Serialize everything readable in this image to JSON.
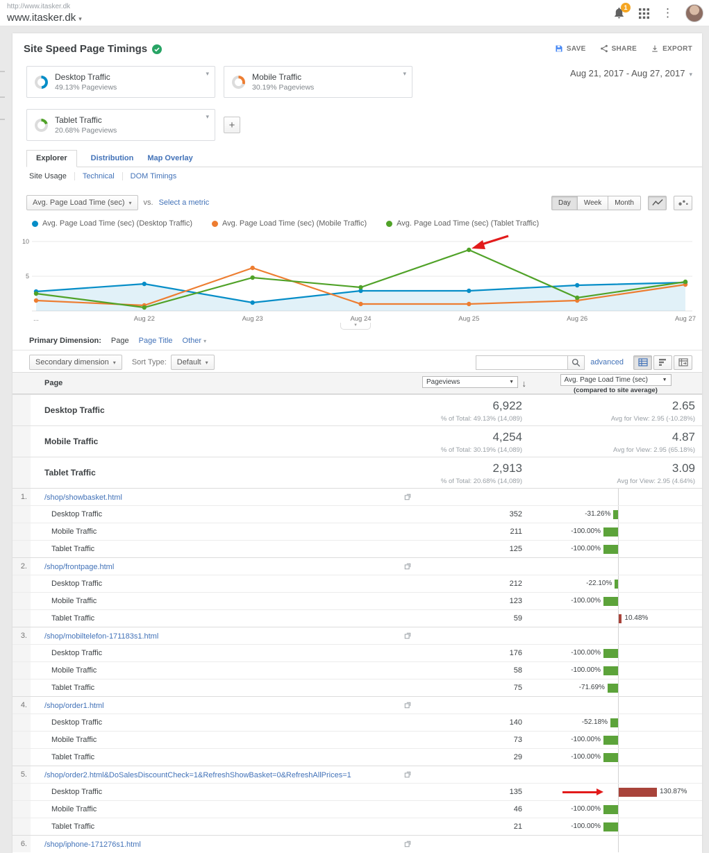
{
  "topbar": {
    "url": "http://www.itasker.dk",
    "account": "www.itasker.dk",
    "notification_count": "1"
  },
  "header": {
    "title": "Site Speed Page Timings",
    "save": "SAVE",
    "share": "SHARE",
    "export": "EXPORT"
  },
  "date_range": "Aug 21, 2017 - Aug 27, 2017",
  "segments": [
    {
      "name": "Desktop Traffic",
      "detail": "49.13% Pageviews",
      "pct": 49.13,
      "color": "#058dc7"
    },
    {
      "name": "Mobile Traffic",
      "detail": "30.19% Pageviews",
      "pct": 30.19,
      "color": "#ed7d31"
    },
    {
      "name": "Tablet Traffic",
      "detail": "20.68% Pageviews",
      "pct": 20.68,
      "color": "#50a228"
    }
  ],
  "add_segment": "+",
  "tabs": [
    {
      "label": "Explorer",
      "active": true
    },
    {
      "label": "Distribution",
      "active": false
    },
    {
      "label": "Map Overlay",
      "active": false
    }
  ],
  "subtabs": [
    {
      "label": "Site Usage",
      "active": true
    },
    {
      "label": "Technical",
      "active": false
    },
    {
      "label": "DOM Timings",
      "active": false
    }
  ],
  "controls": {
    "metric_button": "Avg. Page Load Time (sec)",
    "vs": "vs.",
    "select_metric": "Select a metric",
    "granularity": [
      "Day",
      "Week",
      "Month"
    ],
    "granularity_active": "Day"
  },
  "chart_data": {
    "type": "line",
    "x": [
      "...",
      "Aug 22",
      "Aug 23",
      "Aug 24",
      "Aug 25",
      "Aug 26",
      "Aug 27"
    ],
    "ylim": [
      0,
      10
    ],
    "yticks": [
      5,
      10
    ],
    "ylabel": "Avg. Page Load Time (sec)",
    "series": [
      {
        "name": "Avg. Page Load Time (sec) (Desktop Traffic)",
        "color": "#058dc7",
        "area": true,
        "values": [
          2.8,
          3.9,
          1.2,
          2.9,
          2.9,
          3.7,
          4.1
        ]
      },
      {
        "name": "Avg. Page Load Time (sec) (Mobile Traffic)",
        "color": "#ed7d31",
        "area": false,
        "values": [
          1.5,
          0.8,
          6.2,
          1.0,
          1.0,
          1.5,
          3.8
        ]
      },
      {
        "name": "Avg. Page Load Time (sec) (Tablet Traffic)",
        "color": "#50a228",
        "area": false,
        "values": [
          2.5,
          0.5,
          4.8,
          3.4,
          8.8,
          1.9,
          4.2
        ]
      }
    ],
    "annotation": "red arrow pointing at Tablet Traffic peak on Aug 25"
  },
  "primary_dimension": {
    "label": "Primary Dimension:",
    "options": [
      {
        "label": "Page",
        "active": true
      },
      {
        "label": "Page Title",
        "active": false
      },
      {
        "label": "Other",
        "active": false
      }
    ]
  },
  "toolbar": {
    "secondary_dimension": "Secondary dimension",
    "sort_type_label": "Sort Type:",
    "sort_type_value": "Default",
    "search_value": "",
    "advanced": "advanced"
  },
  "table": {
    "columns": {
      "page": "Page",
      "pageviews": "Pageviews",
      "metric": "Avg. Page Load Time (sec)",
      "metric_note": "(compared to site average)"
    },
    "bar_negative_color": "#5ca33a",
    "bar_positive_color": "#a8433a",
    "summary": [
      {
        "name": "Desktop Traffic",
        "pageviews": "6,922",
        "pageviews_note": "% of Total: 49.13% (14,089)",
        "metric": "2.65",
        "metric_note": "Avg for View: 2.95 (-10.28%)"
      },
      {
        "name": "Mobile Traffic",
        "pageviews": "4,254",
        "pageviews_note": "% of Total: 30.19% (14,089)",
        "metric": "4.87",
        "metric_note": "Avg for View: 2.95 (65.18%)"
      },
      {
        "name": "Tablet Traffic",
        "pageviews": "2,913",
        "pageviews_note": "% of Total: 20.68% (14,089)",
        "metric": "3.09",
        "metric_note": "Avg for View: 2.95 (4.64%)"
      }
    ],
    "rows": [
      {
        "index": "1.",
        "page": "/shop/showbasket.html",
        "segments": [
          {
            "name": "Desktop Traffic",
            "pageviews": "352",
            "pct": -31.26,
            "pct_label": "-31.26%"
          },
          {
            "name": "Mobile Traffic",
            "pageviews": "211",
            "pct": -100.0,
            "pct_label": "-100.00%"
          },
          {
            "name": "Tablet Traffic",
            "pageviews": "125",
            "pct": -100.0,
            "pct_label": "-100.00%"
          }
        ]
      },
      {
        "index": "2.",
        "page": "/shop/frontpage.html",
        "segments": [
          {
            "name": "Desktop Traffic",
            "pageviews": "212",
            "pct": -22.1,
            "pct_label": "-22.10%"
          },
          {
            "name": "Mobile Traffic",
            "pageviews": "123",
            "pct": -100.0,
            "pct_label": "-100.00%"
          },
          {
            "name": "Tablet Traffic",
            "pageviews": "59",
            "pct": 10.48,
            "pct_label": "10.48%"
          }
        ]
      },
      {
        "index": "3.",
        "page": "/shop/mobiltelefon-171183s1.html",
        "segments": [
          {
            "name": "Desktop Traffic",
            "pageviews": "176",
            "pct": -100.0,
            "pct_label": "-100.00%"
          },
          {
            "name": "Mobile Traffic",
            "pageviews": "58",
            "pct": -100.0,
            "pct_label": "-100.00%"
          },
          {
            "name": "Tablet Traffic",
            "pageviews": "75",
            "pct": -71.69,
            "pct_label": "-71.69%"
          }
        ]
      },
      {
        "index": "4.",
        "page": "/shop/order1.html",
        "segments": [
          {
            "name": "Desktop Traffic",
            "pageviews": "140",
            "pct": -52.18,
            "pct_label": "-52.18%"
          },
          {
            "name": "Mobile Traffic",
            "pageviews": "73",
            "pct": -100.0,
            "pct_label": "-100.00%"
          },
          {
            "name": "Tablet Traffic",
            "pageviews": "29",
            "pct": -100.0,
            "pct_label": "-100.00%"
          }
        ]
      },
      {
        "index": "5.",
        "page": "/shop/order2.html&DoSalesDiscountCheck=1&RefreshShowBasket=0&RefreshAllPrices=1",
        "segments": [
          {
            "name": "Desktop Traffic",
            "pageviews": "135",
            "pct": 130.87,
            "pct_label": "130.87%",
            "annotated": true
          },
          {
            "name": "Mobile Traffic",
            "pageviews": "46",
            "pct": -100.0,
            "pct_label": "-100.00%"
          },
          {
            "name": "Tablet Traffic",
            "pageviews": "21",
            "pct": -100.0,
            "pct_label": "-100.00%"
          }
        ]
      },
      {
        "index": "6.",
        "page": "/shop/iphone-171276s1.html",
        "segments": []
      }
    ]
  }
}
